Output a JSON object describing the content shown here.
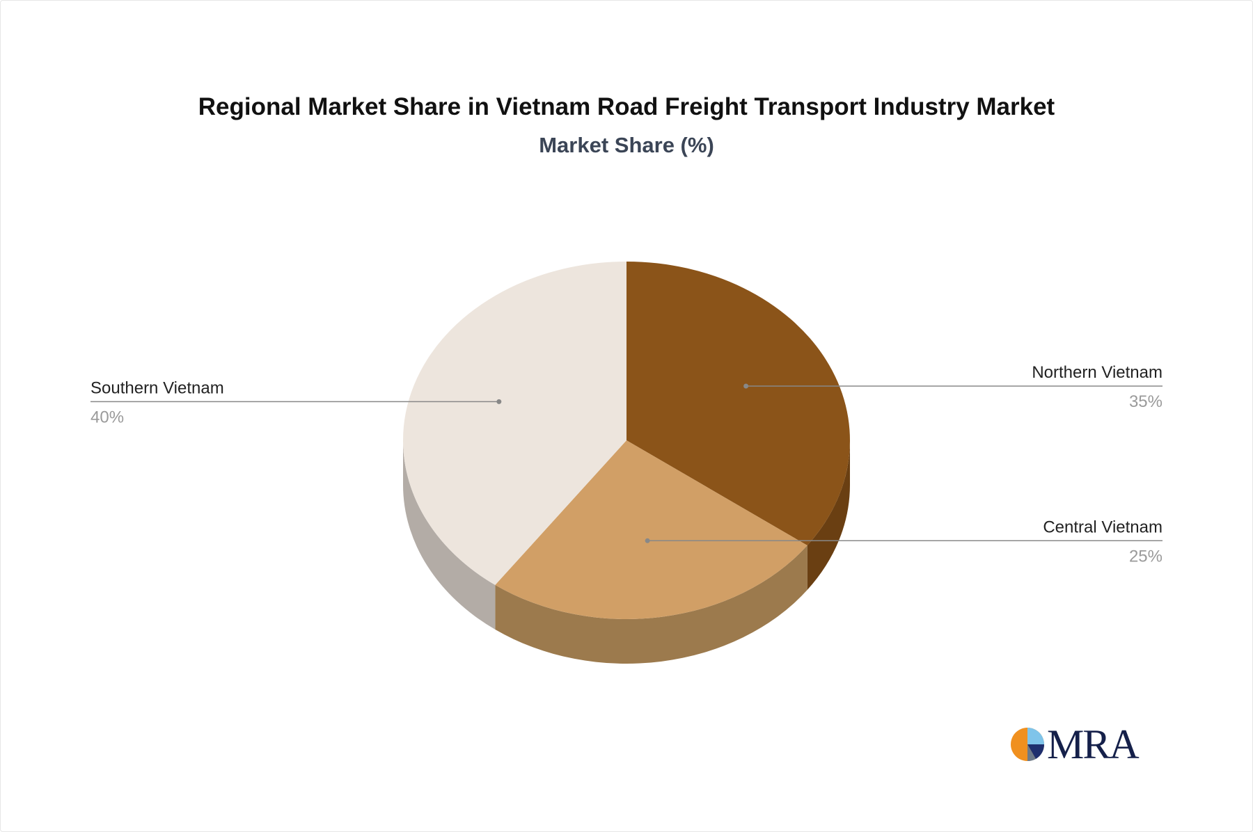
{
  "chart_data": {
    "type": "pie",
    "title": "Regional Market Share in Vietnam Road Freight Transport Industry Market",
    "subtitle": "Market Share (%)",
    "slices": [
      {
        "label": "Northern Vietnam",
        "value": 35,
        "value_label": "35%",
        "color": "#8b5419",
        "side_color": "#6a3f12"
      },
      {
        "label": "Central Vietnam",
        "value": 25,
        "value_label": "25%",
        "color": "#d19f66",
        "side_color": "#9c7a4d"
      },
      {
        "label": "Southern Vietnam",
        "value": 40,
        "value_label": "40%",
        "color": "#ede5dd",
        "side_color": "#b3aca6"
      }
    ],
    "legend": "none"
  },
  "colors": {
    "title": "#111111",
    "subtitle": "#3b4556",
    "label": "#222222",
    "value_label": "#9a9a9a",
    "leader": "#888888"
  },
  "logo": {
    "text": "MRA",
    "icon": "mra-logo-icon"
  }
}
